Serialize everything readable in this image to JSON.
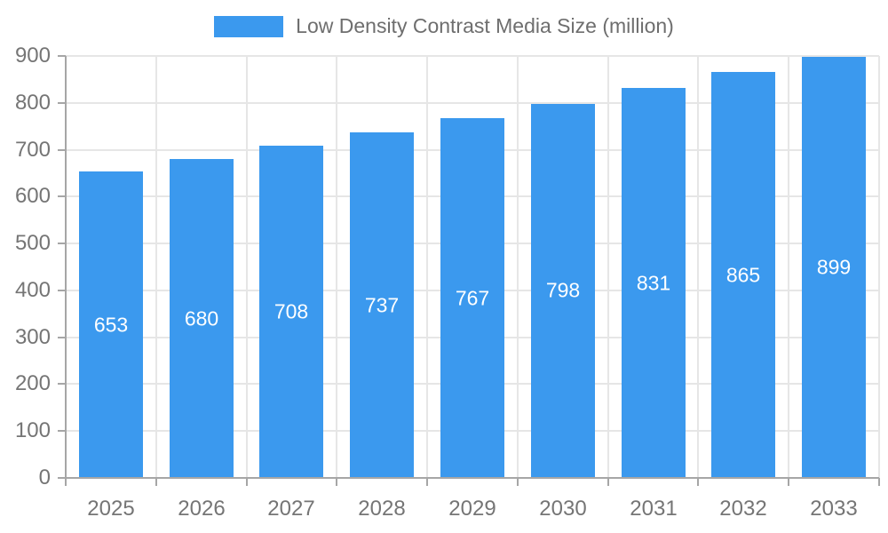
{
  "legend": {
    "label": "Low Density Contrast Media Size (million)",
    "swatch_color": "#3b99ee"
  },
  "chart_data": {
    "type": "bar",
    "title": "Low Density Contrast Media Size (million)",
    "categories": [
      "2025",
      "2026",
      "2027",
      "2028",
      "2029",
      "2030",
      "2031",
      "2032",
      "2033"
    ],
    "values": [
      653,
      680,
      708,
      737,
      767,
      798,
      831,
      865,
      899
    ],
    "xlabel": "",
    "ylabel": "",
    "ylim": [
      0,
      900
    ],
    "ytick_step": 100,
    "grid": true,
    "legend_position": "top",
    "bar_color": "#3b99ee",
    "bar_label_color": "#ffffff",
    "axis_line_color": "#a6a6a6",
    "gridline_color": "#e6e6e6",
    "tick_label_color": "#757575"
  }
}
